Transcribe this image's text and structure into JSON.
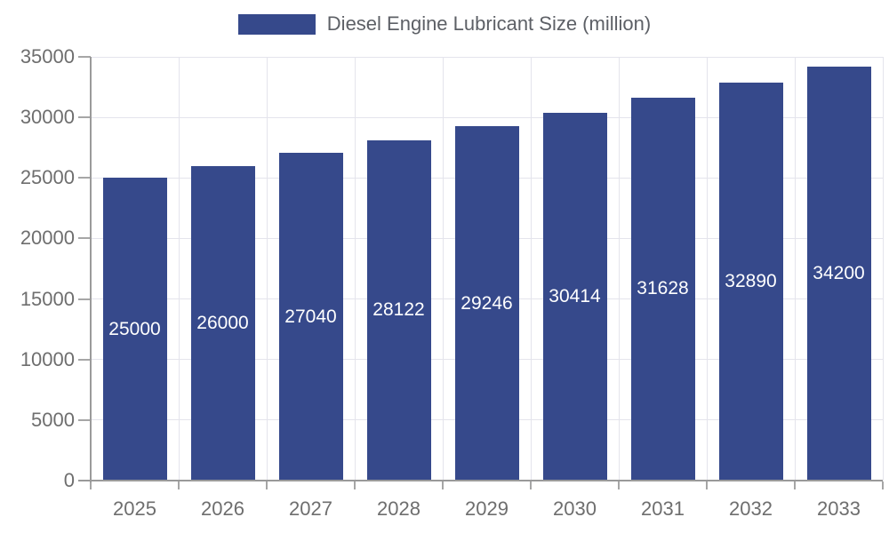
{
  "legend": {
    "label": "Diesel Engine Lubricant Size (million)"
  },
  "chart_data": {
    "type": "bar",
    "title": "Diesel Engine Lubricant Size (million)",
    "series_name": "Diesel Engine Lubricant Size (million)",
    "categories": [
      "2025",
      "2026",
      "2027",
      "2028",
      "2029",
      "2030",
      "2031",
      "2032",
      "2033"
    ],
    "values": [
      25000,
      26000,
      27040,
      28122,
      29246,
      30414,
      31628,
      32890,
      34200
    ],
    "value_labels": [
      "25000",
      "26000",
      "27040",
      "28122",
      "29246",
      "30414",
      "31628",
      "32890",
      "34200"
    ],
    "xlabel": "",
    "ylabel": "",
    "ylim": [
      0,
      35000
    ],
    "yticks": [
      0,
      5000,
      10000,
      15000,
      20000,
      25000,
      30000,
      35000
    ],
    "ytick_labels": [
      "0",
      "5000",
      "10000",
      "15000",
      "20000",
      "25000",
      "30000",
      "35000"
    ],
    "grid": true,
    "legend_position": "top-center",
    "bar_color": "#36498B",
    "value_label_color": "#ffffff",
    "axis_text_color": "#6e6e6e",
    "legend_text_color": "#5d6066",
    "grid_color": "#e4e4ec",
    "axis_line_color": "#9a9a9a"
  }
}
